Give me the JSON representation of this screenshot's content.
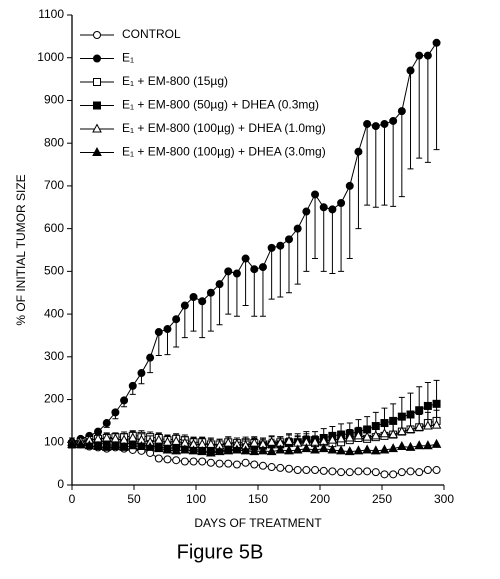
{
  "chart_data": {
    "type": "line",
    "xlabel": "DAYS OF TREATMENT",
    "ylabel": "% OF INITIAL TUMOR SIZE",
    "caption": "Figure 5B",
    "xlim": [
      0,
      300
    ],
    "xticks": [
      0,
      50,
      100,
      150,
      200,
      250,
      300
    ],
    "ylim": [
      0,
      1100
    ],
    "yticks": [
      0,
      100,
      200,
      300,
      400,
      500,
      600,
      700,
      800,
      900,
      1000,
      1100
    ],
    "legend": "upper left",
    "color": "#000000",
    "x": [
      0,
      7,
      14,
      21,
      28,
      35,
      42,
      49,
      56,
      63,
      70,
      77,
      84,
      91,
      98,
      105,
      112,
      119,
      126,
      133,
      140,
      147,
      154,
      161,
      168,
      175,
      182,
      189,
      196,
      203,
      210,
      217,
      224,
      231,
      238,
      245,
      252,
      259,
      266,
      273,
      280,
      287,
      294
    ],
    "series": [
      {
        "name": "CONTROL",
        "marker": "open-circle",
        "values": [
          100,
          95,
          90,
          88,
          85,
          88,
          85,
          82,
          80,
          75,
          62,
          60,
          58,
          55,
          55,
          55,
          52,
          50,
          50,
          48,
          52,
          48,
          45,
          42,
          40,
          38,
          35,
          35,
          35,
          33,
          32,
          30,
          30,
          32,
          32,
          30,
          25,
          25,
          30,
          32,
          30,
          35,
          35
        ]
      },
      {
        "name": "E₁",
        "marker": "filled-circle",
        "errors_side": "down",
        "values": [
          100,
          108,
          115,
          125,
          145,
          170,
          198,
          232,
          262,
          298,
          358,
          365,
          388,
          420,
          440,
          430,
          450,
          470,
          500,
          495,
          530,
          505,
          510,
          555,
          560,
          575,
          600,
          640,
          680,
          650,
          645,
          660,
          700,
          780,
          845,
          840,
          845,
          852,
          875,
          970,
          1005,
          1005,
          1035
        ],
        "errors": [
          0,
          5,
          10,
          10,
          10,
          15,
          15,
          20,
          25,
          35,
          55,
          60,
          65,
          75,
          80,
          85,
          90,
          95,
          100,
          100,
          110,
          110,
          115,
          120,
          120,
          125,
          130,
          140,
          150,
          150,
          150,
          160,
          170,
          180,
          190,
          190,
          190,
          200,
          200,
          230,
          240,
          250,
          250
        ]
      },
      {
        "name": "E₁ + EM-800 (15µg)",
        "marker": "open-square",
        "errors_side": "up",
        "values": [
          95,
          100,
          105,
          108,
          110,
          112,
          112,
          115,
          115,
          112,
          110,
          105,
          108,
          105,
          100,
          100,
          95,
          95,
          100,
          98,
          100,
          98,
          95,
          95,
          100,
          98,
          100,
          105,
          98,
          100,
          98,
          100,
          105,
          110,
          108,
          112,
          115,
          118,
          125,
          130,
          135,
          145,
          150
        ],
        "errors": [
          8,
          8,
          10,
          10,
          10,
          10,
          12,
          12,
          12,
          12,
          12,
          12,
          12,
          12,
          12,
          12,
          12,
          12,
          12,
          12,
          12,
          12,
          12,
          12,
          12,
          12,
          15,
          15,
          15,
          15,
          15,
          18,
          18,
          20,
          20,
          22,
          25,
          28,
          30,
          32,
          35,
          38,
          40
        ]
      },
      {
        "name": "E₁ + EM-800 (50µg) + DHEA (0.3mg)",
        "marker": "filled-square",
        "errors_side": "up",
        "values": [
          95,
          95,
          100,
          98,
          95,
          92,
          95,
          98,
          95,
          90,
          90,
          85,
          88,
          90,
          85,
          80,
          78,
          80,
          82,
          85,
          88,
          90,
          92,
          95,
          95,
          100,
          100,
          105,
          105,
          110,
          115,
          118,
          120,
          125,
          130,
          138,
          145,
          150,
          160,
          165,
          175,
          185,
          190
        ],
        "errors": [
          5,
          5,
          8,
          8,
          10,
          10,
          10,
          12,
          12,
          12,
          12,
          12,
          15,
          15,
          15,
          15,
          15,
          15,
          15,
          15,
          15,
          18,
          18,
          18,
          18,
          20,
          20,
          20,
          20,
          22,
          22,
          25,
          25,
          28,
          30,
          32,
          35,
          40,
          45,
          50,
          55,
          55,
          55
        ]
      },
      {
        "name": "E₁ + EM-800 (100µg) + DHEA (1.0mg)",
        "marker": "open-triangle",
        "errors_side": "up",
        "values": [
          100,
          102,
          105,
          108,
          110,
          108,
          105,
          110,
          105,
          100,
          105,
          100,
          102,
          98,
          95,
          95,
          95,
          92,
          98,
          95,
          92,
          98,
          95,
          100,
          98,
          102,
          98,
          100,
          100,
          102,
          105,
          108,
          110,
          115,
          112,
          115,
          120,
          118,
          125,
          130,
          135,
          138,
          140
        ],
        "errors": [
          10,
          10,
          12,
          12,
          12,
          12,
          15,
          15,
          15,
          15,
          15,
          15,
          15,
          15,
          15,
          15,
          15,
          15,
          15,
          15,
          15,
          15,
          15,
          15,
          15,
          15,
          15,
          15,
          15,
          15,
          18,
          18,
          20,
          20,
          22,
          22,
          25,
          25,
          28,
          30,
          30,
          32,
          35
        ]
      },
      {
        "name": "E₁ + EM-800 (100µg) + DHEA (3.0mg)",
        "marker": "filled-triangle",
        "values": [
          95,
          95,
          92,
          90,
          88,
          90,
          88,
          92,
          90,
          88,
          85,
          82,
          80,
          82,
          80,
          78,
          75,
          78,
          80,
          82,
          80,
          78,
          80,
          78,
          82,
          80,
          82,
          85,
          82,
          85,
          82,
          80,
          78,
          80,
          82,
          80,
          82,
          85,
          90,
          88,
          92,
          92,
          95
        ]
      }
    ]
  }
}
